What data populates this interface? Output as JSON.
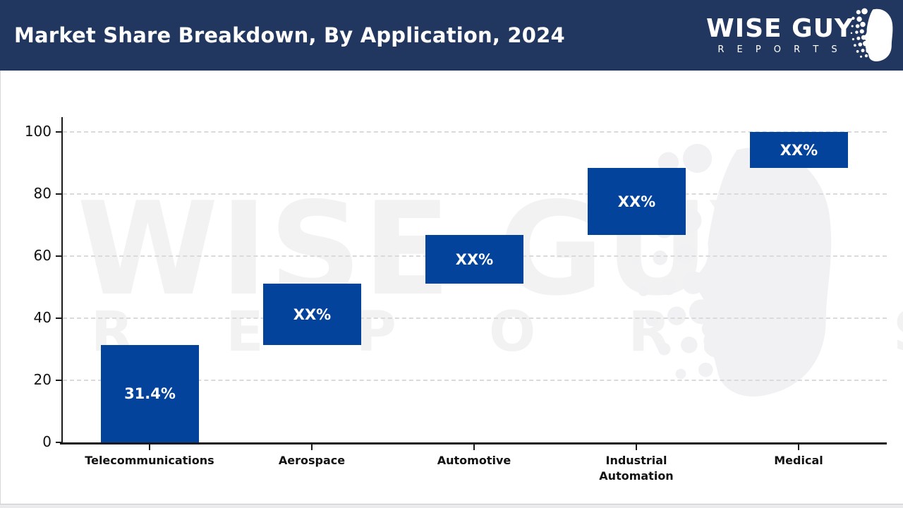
{
  "header": {
    "title": "Market Share Breakdown, By Application, 2024",
    "logo": {
      "line1": "WISE GUY",
      "line2": "R E P O R T S"
    },
    "bg_color": "#22375f"
  },
  "watermark": {
    "line1": "WISE GUY",
    "line2": "R E P O R T S",
    "color": "#f2f2f3"
  },
  "chart_data": {
    "type": "bar",
    "subtype": "waterfall-floating-bars",
    "title": "Market Share Breakdown, By Application, 2024",
    "categories": [
      "Telecommunications",
      "Aerospace",
      "Automotive",
      "Industrial\nAutomation",
      "Medical"
    ],
    "segments": [
      {
        "category": "Telecommunications",
        "start": 0,
        "end": 31.4,
        "label": "31.4%"
      },
      {
        "category": "Aerospace",
        "start": 31.4,
        "end": 51.2,
        "label": "XX%"
      },
      {
        "category": "Automotive",
        "start": 51.2,
        "end": 66.8,
        "label": "XX%"
      },
      {
        "category": "Industrial Automation",
        "start": 66.8,
        "end": 88.4,
        "label": "XX%"
      },
      {
        "category": "Medical",
        "start": 88.4,
        "end": 100,
        "label": "XX%"
      }
    ],
    "xlabel": "",
    "ylabel": "",
    "ylim": [
      0,
      100
    ],
    "yticks": [
      0,
      20,
      40,
      60,
      80,
      100
    ],
    "grid": {
      "axis": "y",
      "style": "dashed",
      "color": "#dadada"
    },
    "legend": "none",
    "bar_color": "#04439c",
    "bar_label_color": "#ffffff",
    "axis_color": "#1a1a1a"
  }
}
